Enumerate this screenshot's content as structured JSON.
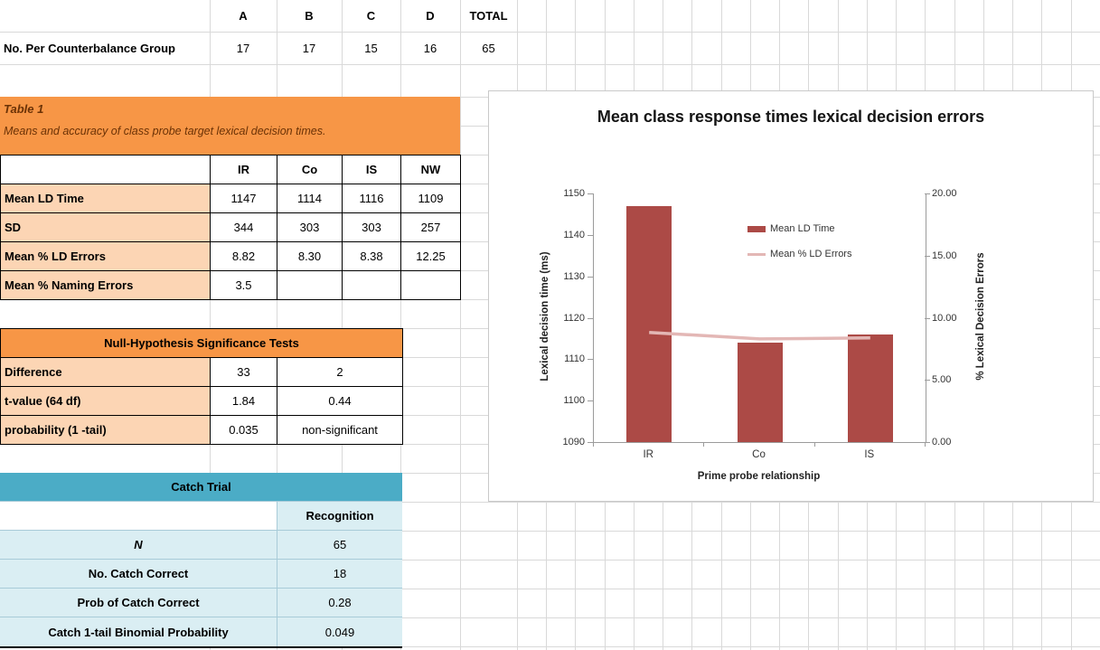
{
  "colors": {
    "header_orange": "#F79646",
    "row_peach": "#FCD5B4",
    "header_teal": "#4BACC6",
    "row_light_blue": "#DAEEF3",
    "bar_red": "#AC4A46",
    "line_pink": "#E3B7B5"
  },
  "top": {
    "col_headers": [
      "A",
      "B",
      "C",
      "D",
      "TOTAL"
    ],
    "row_label": "No. Per Counterbalance Group",
    "values": [
      "17",
      "17",
      "15",
      "16",
      "65"
    ]
  },
  "table1": {
    "title": "Table 1",
    "subtitle": "Means and accuracy of class probe target lexical decision times.",
    "col_headers": [
      "IR",
      "Co",
      "IS",
      "NW"
    ],
    "rows": [
      {
        "label": "Mean LD Time",
        "values": [
          "1147",
          "1114",
          "1116",
          "1109"
        ]
      },
      {
        "label": "SD",
        "values": [
          "344",
          "303",
          "303",
          "257"
        ]
      },
      {
        "label": "Mean % LD Errors",
        "values": [
          "8.82",
          "8.30",
          "8.38",
          "12.25"
        ]
      },
      {
        "label": "Mean % Naming Errors",
        "values": [
          "3.5",
          "",
          "",
          ""
        ]
      }
    ]
  },
  "nhst": {
    "title": "Null-Hypothesis Significance Tests",
    "rows": [
      {
        "label": "Difference",
        "col1": "33",
        "col2": "2"
      },
      {
        "label": "t-value (64 df)",
        "col1": "1.84",
        "col2": "0.44"
      },
      {
        "label": "probability (1 -tail)",
        "col1": "0.035",
        "col2": "non-significant"
      }
    ]
  },
  "catch_trial": {
    "title": "Catch Trial",
    "col_header": "Recognition",
    "rows": [
      {
        "label": "N",
        "value": "65"
      },
      {
        "label": "No. Catch Correct",
        "value": "18"
      },
      {
        "label": "Prob of Catch Correct",
        "value": "0.28"
      },
      {
        "label": "Catch 1-tail Binomial Probability",
        "value": "0.049"
      }
    ]
  },
  "chart_data": {
    "type": "bar",
    "title": "Mean class response times lexical decision errors",
    "categories": [
      "IR",
      "Co",
      "IS"
    ],
    "series": [
      {
        "name": "Mean LD Time",
        "type": "bar",
        "axis": "left",
        "values": [
          1147,
          1114,
          1116
        ]
      },
      {
        "name": "Mean % LD Errors",
        "type": "line",
        "axis": "right",
        "values": [
          8.82,
          8.3,
          8.38
        ]
      }
    ],
    "xlabel": "Prime probe relationship",
    "ylabel_left": "Lexical decision time (ms)",
    "ylabel_right": "% Lexical Decision Errors",
    "ylim_left": [
      1090,
      1150
    ],
    "ylim_right": [
      0,
      20
    ],
    "yticks_left": [
      "1150",
      "1140",
      "1130",
      "1120",
      "1110",
      "1100",
      "1090"
    ],
    "yticks_right": [
      "20.00",
      "15.00",
      "10.00",
      "5.00",
      "0.00"
    ],
    "grid": false,
    "legend_position": "inside-top"
  }
}
